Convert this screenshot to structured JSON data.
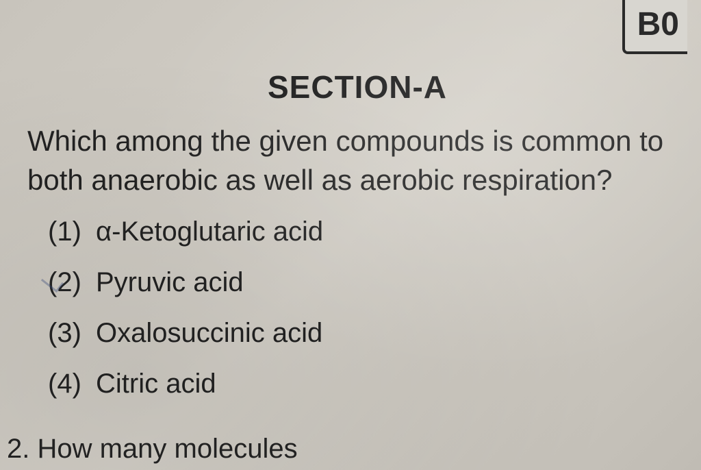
{
  "corner_label": "B0",
  "section_title": "SECTION-A",
  "question": {
    "prefix": ".",
    "text": "Which among the given compounds is common to both anaerobic as well as aerobic respiration?"
  },
  "options": [
    {
      "num": "(1)",
      "text": "α-Ketoglutaric acid"
    },
    {
      "num": "(2)",
      "text": "Pyruvic acid"
    },
    {
      "num": "(3)",
      "text": "Oxalosuccinic acid"
    },
    {
      "num": "(4)",
      "text": "Citric acid"
    }
  ],
  "next_question_fragment": "2. How many molecules",
  "styling": {
    "background_gradient": [
      "#c8c4bc",
      "#d4d0c8",
      "#c0bcb4"
    ],
    "text_color": "#2a2a2a",
    "title_fontsize": 46,
    "question_fontsize": 42,
    "option_fontsize": 40,
    "corner_fontsize": 48,
    "checkmark_color": "rgba(50,70,120,0.6)",
    "font_family": "Arial"
  }
}
